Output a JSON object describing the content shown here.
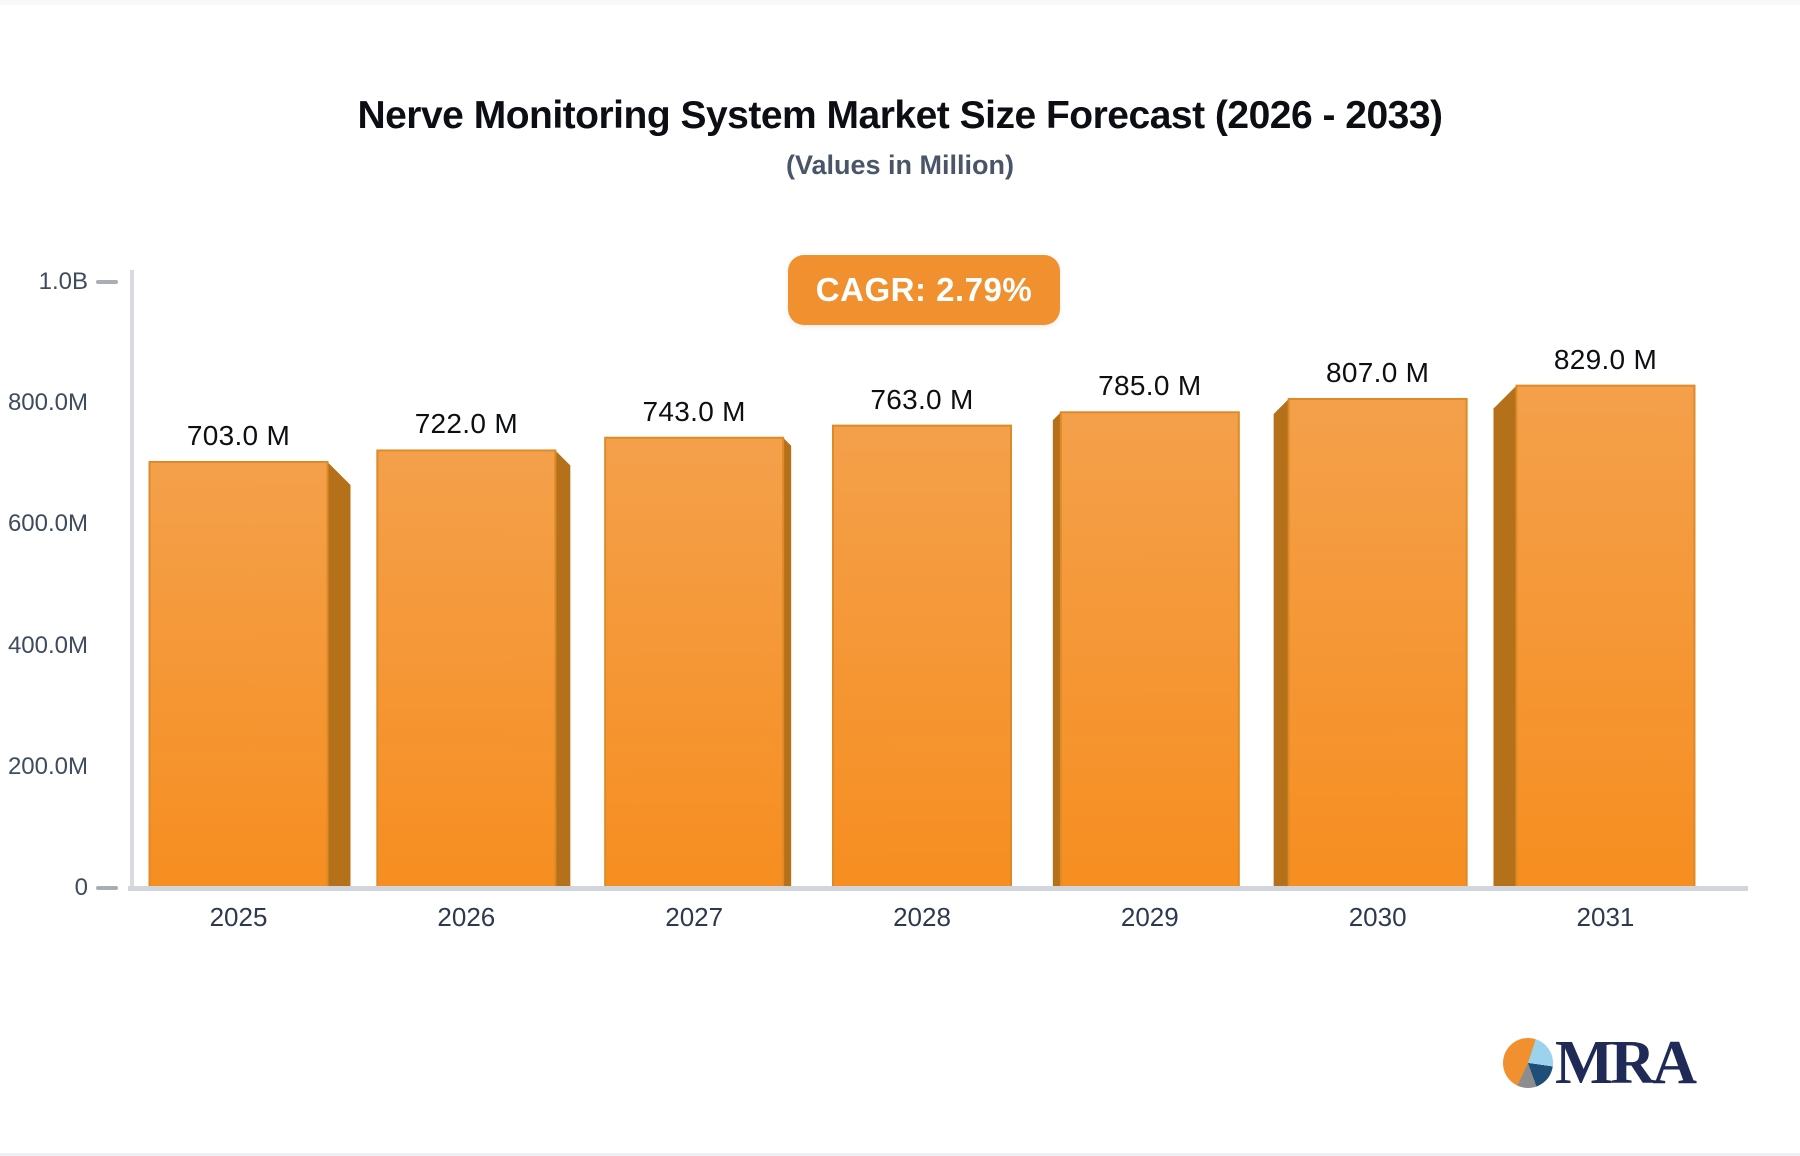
{
  "page": {
    "title": "Nerve Monitoring System Market Size Forecast (2026 - 2033)",
    "subtitle": "(Values in Million)",
    "badge_label": "CAGR: 2.79%"
  },
  "chart_data": {
    "type": "bar",
    "title": "Nerve Monitoring System Market Size Forecast (2026 - 2033)",
    "subtitle": "(Values in Million)",
    "categories": [
      "2025",
      "2026",
      "2027",
      "2028",
      "2029",
      "2030",
      "2031"
    ],
    "values": [
      703,
      722,
      743,
      763,
      785,
      807,
      829
    ],
    "value_labels": [
      "703.0 M",
      "722.0 M",
      "743.0 M",
      "763.0 M",
      "785.0 M",
      "807.0 M",
      "829.0 M"
    ],
    "annotations": [
      "CAGR: 2.79%"
    ],
    "xlabel": "",
    "ylabel": "",
    "ylim": [
      0,
      1000
    ],
    "grid": false,
    "legend": false,
    "bar_style": "3d-perspective-orange",
    "y_ticks": [
      {
        "label": "1.0B",
        "value": 1000,
        "dash": true
      },
      {
        "label": "800.0M",
        "value": 800,
        "dash": false
      },
      {
        "label": "600.0M",
        "value": 600,
        "dash": false
      },
      {
        "label": "400.0M",
        "value": 400,
        "dash": false
      },
      {
        "label": "200.0M",
        "value": 200,
        "dash": false
      },
      {
        "label": "0",
        "value": 0,
        "dash": true
      }
    ]
  },
  "colors": {
    "bar_face_top": "#f4a04b",
    "bar_face_bottom": "#f68e20",
    "bar_side": "#b5701a",
    "bar_stroke": "#dd8a28",
    "badge_bg": "#f0902f",
    "badge_text": "#ffffff",
    "axis_line": "#d5d8de",
    "title": "#0c0e13",
    "subtitle": "#4a5568",
    "y_label": "#3f4c5e",
    "x_label": "#2e3950",
    "value_label": "#0d0f13",
    "logo_navy": "#1f2a56",
    "logo_blue": "#9cd3ec",
    "logo_steel": "#1f4e79",
    "logo_gray": "#8d8d90",
    "logo_orange": "#f0902f"
  },
  "logo": {
    "text": "MRA",
    "icon": "pie-chart-icon"
  }
}
